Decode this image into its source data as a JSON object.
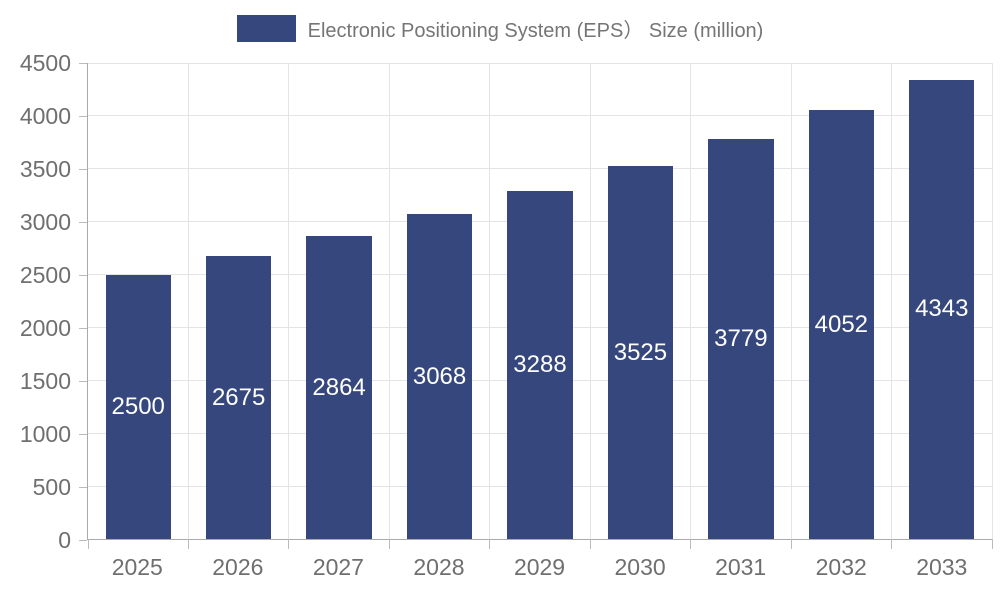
{
  "legend": {
    "position": "top",
    "swatch_color": "#36477E"
  },
  "chart_data": {
    "type": "bar",
    "title": "Electronic Positioning System (EPS） Size (million)",
    "categories": [
      "2025",
      "2026",
      "2027",
      "2028",
      "2029",
      "2030",
      "2031",
      "2032",
      "2033"
    ],
    "values": [
      2500,
      2675,
      2864,
      3068,
      3288,
      3525,
      3779,
      4052,
      4343
    ],
    "xlabel": "",
    "ylabel": "",
    "ylim": [
      0,
      4500
    ],
    "yticks": [
      0,
      500,
      1000,
      1500,
      2000,
      2500,
      3000,
      3500,
      4000,
      4500
    ],
    "grid": true,
    "legend_position": "top",
    "bar_value_labels_inside": true
  },
  "colors": {
    "bar_fill": "#36477E",
    "grid_line": "#e4e4e4",
    "axis_line": "#aaaaaa",
    "tick_mark": "#bbbbbb",
    "axis_label": "#6f6f6f",
    "bar_label": "#ffffff",
    "legend_text": "#757575",
    "background": "#ffffff"
  }
}
